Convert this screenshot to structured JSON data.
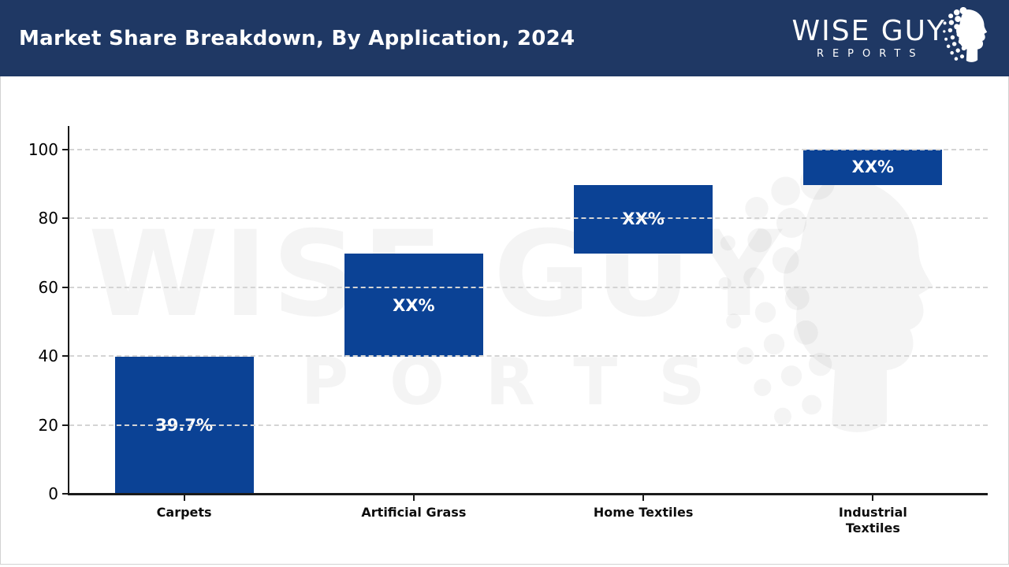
{
  "header": {
    "title": "Market Share Breakdown, By Application, 2024",
    "logo": {
      "line1": "WISE GUY",
      "line2": "REPORTS",
      "face_icon": "dotted-head-profile"
    }
  },
  "watermark": {
    "text_top": "WISE GUY",
    "text_bottom": "PORTS",
    "face_icon": "dotted-head-profile"
  },
  "chart_data": {
    "type": "bar",
    "subtype": "waterfall",
    "title": "Market Share Breakdown, By Application, 2024",
    "categories": [
      "Carpets",
      "Artificial Grass",
      "Home Textiles",
      "Industrial Textiles"
    ],
    "bars": [
      {
        "category": "Carpets",
        "start": 0,
        "end": 39.7,
        "value_label": "39.7%"
      },
      {
        "category": "Artificial Grass",
        "start": 39.7,
        "end": 69.7,
        "value_label": "XX%"
      },
      {
        "category": "Home Textiles",
        "start": 69.7,
        "end": 89.7,
        "value_label": "XX%"
      },
      {
        "category": "Industrial Textiles",
        "start": 89.7,
        "end": 100,
        "value_label": "XX%"
      }
    ],
    "yticks": [
      0,
      20,
      40,
      60,
      80,
      100
    ],
    "ylim": [
      0,
      106.7
    ],
    "xlabel": "",
    "ylabel": "",
    "legend": false,
    "grid": "horizontal dashed, drawn over bars",
    "colors": {
      "bar": "#0b4295",
      "value_label": "#ffffff",
      "header_bg": "#1f3864",
      "axis": "#1a1a1a",
      "gridline": "#d4d4d4"
    }
  }
}
